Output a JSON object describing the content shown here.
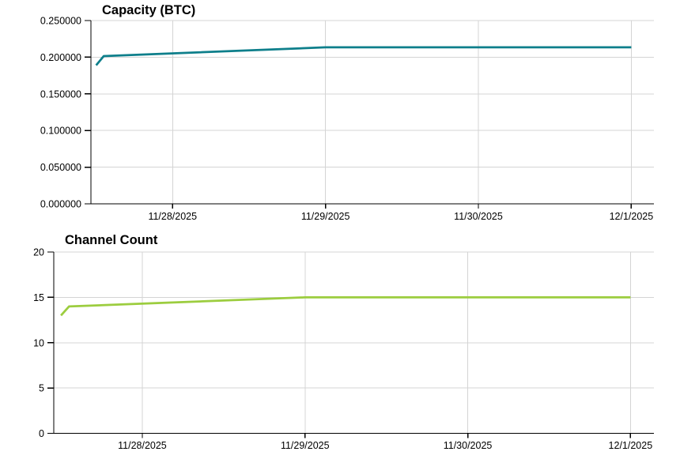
{
  "colors": {
    "background": "#ffffff",
    "grid": "#d4d4d4",
    "axis": "#000000",
    "tick_text": "#000000"
  },
  "chart_data": [
    {
      "type": "line",
      "title": "Capacity (BTC)",
      "xlabel": "",
      "ylabel": "",
      "ylim": [
        0,
        0.25
      ],
      "grid": true,
      "legend_position": "none",
      "y_tick_values": [
        0,
        0.05,
        0.1,
        0.15,
        0.2,
        0.25
      ],
      "y_tick_labels": [
        "0.000000",
        "0.050000",
        "0.100000",
        "0.150000",
        "0.200000",
        "0.250000"
      ],
      "x_tick_labels": [
        "11/28/2025",
        "11/29/2025",
        "11/30/2025",
        "12/1/2025"
      ],
      "x_tick_days": [
        0,
        1,
        2,
        3
      ],
      "x_domain_days": [
        -0.534,
        3.148
      ],
      "line_color": "#0e7f8b",
      "series": [
        {
          "name": "Capacity (BTC)",
          "points": [
            [
              -0.5,
              0.189
            ],
            [
              -0.45,
              0.2015
            ],
            [
              1,
              0.2135
            ],
            [
              3,
              0.2135
            ]
          ]
        }
      ]
    },
    {
      "type": "line",
      "title": "Channel Count",
      "xlabel": "",
      "ylabel": "",
      "ylim": [
        0,
        20
      ],
      "grid": true,
      "legend_position": "none",
      "y_tick_values": [
        0,
        5,
        10,
        15,
        20
      ],
      "y_tick_labels": [
        "0",
        "5",
        "10",
        "15",
        "20"
      ],
      "x_tick_labels": [
        "11/28/2025",
        "11/29/2025",
        "11/30/2025",
        "12/1/2025"
      ],
      "x_tick_days": [
        0,
        1,
        2,
        3
      ],
      "x_domain_days": [
        -0.544,
        3.144
      ],
      "line_color": "#9ccd3f",
      "series": [
        {
          "name": "Channel Count",
          "points": [
            [
              -0.5,
              13
            ],
            [
              -0.45,
              14
            ],
            [
              1,
              15
            ],
            [
              3,
              15
            ]
          ]
        }
      ]
    }
  ]
}
